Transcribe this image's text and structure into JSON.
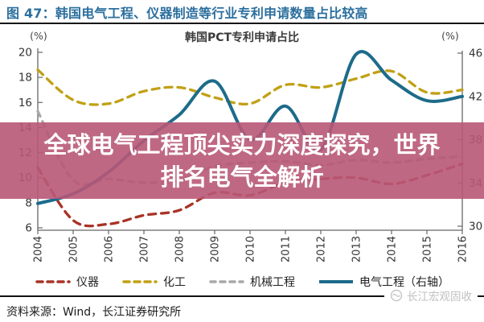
{
  "header": {
    "title": "图 47：韩国电气工程、仪器制造等行业专利申请数量占比较高"
  },
  "overlay": {
    "line1": "全球电气工程顶尖实力深度探究，世界",
    "line2": "排名电气全解析"
  },
  "footer": {
    "source_label": "资料来源：Wind，长江证券研究所",
    "watermark": "长江宏观固收"
  },
  "colors": {
    "fig_title": "#2c6f9e",
    "banner_bg": "rgba(184,88,119,0.90)",
    "axis": "#666666",
    "tick_text": "#333333"
  },
  "chart_data": {
    "type": "line",
    "title": "韩国PCT专利申请占比",
    "grid": false,
    "legend_position": "bottom",
    "left_axis": {
      "unit": "(%)",
      "ticks": [
        20,
        18,
        16,
        14,
        12,
        10,
        8,
        6
      ],
      "range": [
        6,
        20
      ]
    },
    "right_axis": {
      "unit": "(%)",
      "ticks": [
        46,
        42,
        38,
        34,
        30
      ],
      "range": [
        30,
        46
      ]
    },
    "x": [
      2004,
      2005,
      2006,
      2007,
      2008,
      2009,
      2010,
      2011,
      2012,
      2013,
      2014,
      2015,
      2016
    ],
    "series": [
      {
        "name": "仪器",
        "axis": "left",
        "style": "dashed",
        "color": "#a93226",
        "values": [
          10.8,
          6.6,
          6.3,
          7.0,
          7.4,
          8.8,
          8.6,
          9.6,
          9.9,
          10.0,
          9.5,
          10.2,
          11.1
        ]
      },
      {
        "name": "化工",
        "axis": "left",
        "style": "dashed",
        "color": "#c1a015",
        "values": [
          18.6,
          16.2,
          15.9,
          16.9,
          17.2,
          16.4,
          15.9,
          17.4,
          17.2,
          17.9,
          18.5,
          16.8,
          17.0
        ]
      },
      {
        "name": "机械工程",
        "axis": "left",
        "style": "dashed",
        "color": "#a8a8a8",
        "values": [
          15.3,
          9.8,
          9.9,
          9.6,
          9.8,
          10.9,
          11.2,
          11.3,
          11.0,
          11.4,
          11.2,
          11.5,
          11.7
        ]
      },
      {
        "name": "电气工程（右轴）",
        "axis": "right",
        "style": "solid",
        "color": "#1d6b8a",
        "values": [
          32.1,
          33.0,
          35.0,
          37.9,
          40.3,
          43.4,
          38.0,
          41.1,
          37.1,
          45.9,
          43.5,
          41.6,
          42.0
        ]
      }
    ]
  }
}
